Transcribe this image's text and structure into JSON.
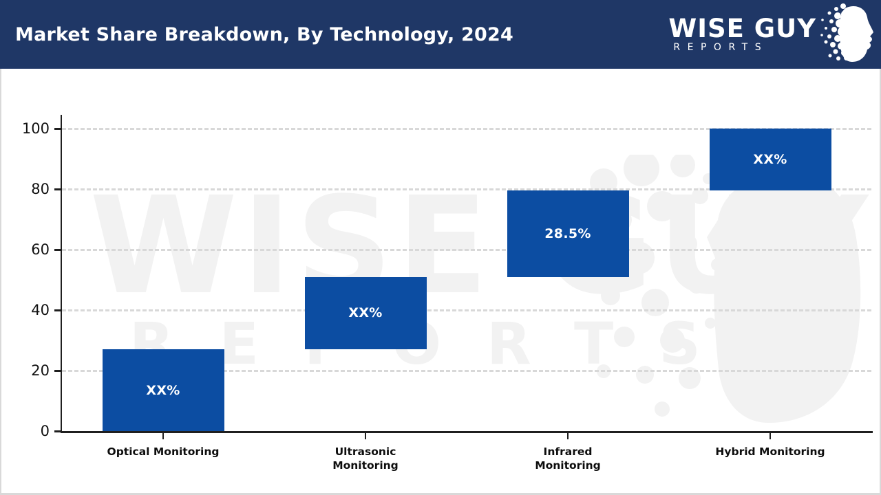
{
  "header": {
    "title": "Market Share Breakdown, By Technology, 2024",
    "brand": {
      "name": "WISE GUY",
      "subtitle": "REPORTS"
    }
  },
  "watermark": {
    "line1": "WISE GUY",
    "line2": "REPORTS"
  },
  "colors": {
    "header_bg": "#1f3766",
    "header_text": "#ffffff",
    "bar": "#0c4da2",
    "bar_label": "#ffffff",
    "gridline": "#d8d8d8",
    "axis": "#1f1f1f",
    "tick_label": "#111111",
    "watermark": "#f2f2f2",
    "page_border": "#d9d9d9"
  },
  "chart_data": {
    "type": "bar",
    "subtype": "floating-waterfall",
    "title": "Market Share Breakdown, By Technology, 2024",
    "categories": [
      "Optical Monitoring",
      "Ultrasonic Monitoring",
      "Infrared Monitoring",
      "Hybrid Monitoring"
    ],
    "category_label_lines": [
      [
        "Optical Monitoring"
      ],
      [
        "Ultrasonic",
        "Monitoring"
      ],
      [
        "Infrared",
        "Monitoring"
      ],
      [
        "Hybrid Monitoring"
      ]
    ],
    "bars": [
      {
        "category": "Optical Monitoring",
        "base": 0,
        "top": 27,
        "height": 27,
        "label": "XX%"
      },
      {
        "category": "Ultrasonic Monitoring",
        "base": 27,
        "top": 51,
        "height": 24,
        "label": "XX%"
      },
      {
        "category": "Infrared Monitoring",
        "base": 51,
        "top": 79.5,
        "height": 28.5,
        "label": "28.5%"
      },
      {
        "category": "Hybrid Monitoring",
        "base": 79.5,
        "top": 100,
        "height": 20.5,
        "label": "XX%"
      }
    ],
    "ylim": [
      0,
      100
    ],
    "yticks": [
      0,
      20,
      40,
      60,
      80,
      100
    ],
    "grid": "horizontal-dashed",
    "legend": null,
    "xlabel": "",
    "ylabel": ""
  }
}
